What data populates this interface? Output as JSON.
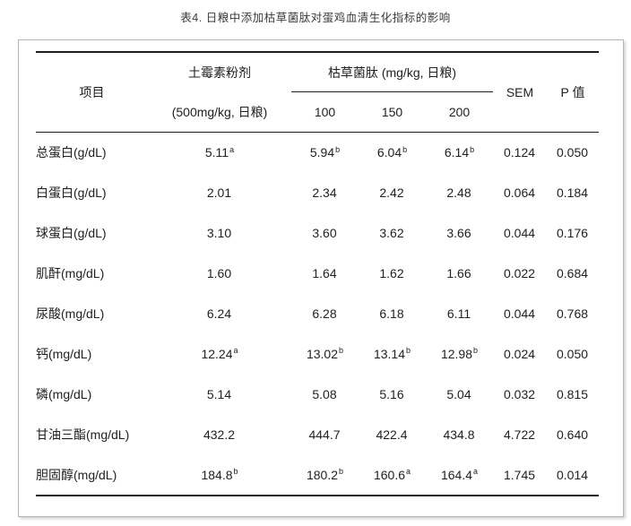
{
  "title": "表4. 日粮中添加枯草菌肽对蛋鸡血清生化指标的影响",
  "table": {
    "columns": {
      "item": "项目",
      "control_line1": "土霉素粉剂",
      "control_line2": "(500mg/kg, 日粮)",
      "group": "枯草菌肽 (mg/kg, 日粮)",
      "doses": [
        "100",
        "150",
        "200"
      ],
      "sem": "SEM",
      "p": "P 值"
    },
    "rows": [
      {
        "item": "总蛋白(g/dL)",
        "values": [
          "5.11",
          "5.94",
          "6.04",
          "6.14",
          "0.124",
          "0.050"
        ],
        "sups": [
          "a",
          "b",
          "b",
          "b",
          "",
          ""
        ]
      },
      {
        "item": "白蛋白(g/dL)",
        "values": [
          "2.01",
          "2.34",
          "2.42",
          "2.48",
          "0.064",
          "0.184"
        ],
        "sups": [
          "",
          "",
          "",
          "",
          "",
          ""
        ]
      },
      {
        "item": "球蛋白(g/dL)",
        "values": [
          "3.10",
          "3.60",
          "3.62",
          "3.66",
          "0.044",
          "0.176"
        ],
        "sups": [
          "",
          "",
          "",
          "",
          "",
          ""
        ]
      },
      {
        "item": "肌酐(mg/dL)",
        "values": [
          "1.60",
          "1.64",
          "1.62",
          "1.66",
          "0.022",
          "0.684"
        ],
        "sups": [
          "",
          "",
          "",
          "",
          "",
          ""
        ]
      },
      {
        "item": "尿酸(mg/dL)",
        "values": [
          "6.24",
          "6.28",
          "6.18",
          "6.11",
          "0.044",
          "0.768"
        ],
        "sups": [
          "",
          "",
          "",
          "",
          "",
          ""
        ]
      },
      {
        "item": "钙(mg/dL)",
        "values": [
          "12.24",
          "13.02",
          "13.14",
          "12.98",
          "0.024",
          "0.050"
        ],
        "sups": [
          "a",
          "b",
          "b",
          "b",
          "",
          ""
        ]
      },
      {
        "item": "磷(mg/dL)",
        "values": [
          "5.14",
          "5.08",
          "5.16",
          "5.04",
          "0.032",
          "0.815"
        ],
        "sups": [
          "",
          "",
          "",
          "",
          "",
          ""
        ]
      },
      {
        "item": "甘油三酯(mg/dL)",
        "values": [
          "432.2",
          "444.7",
          "422.4",
          "434.8",
          "4.722",
          "0.640"
        ],
        "sups": [
          "",
          "",
          "",
          "",
          "",
          ""
        ]
      },
      {
        "item": "胆固醇(mg/dL)",
        "values": [
          "184.8",
          "180.2",
          "160.6",
          "164.4",
          "1.745",
          "0.014"
        ],
        "sups": [
          "b",
          "b",
          "a",
          "a",
          "",
          ""
        ]
      }
    ]
  }
}
